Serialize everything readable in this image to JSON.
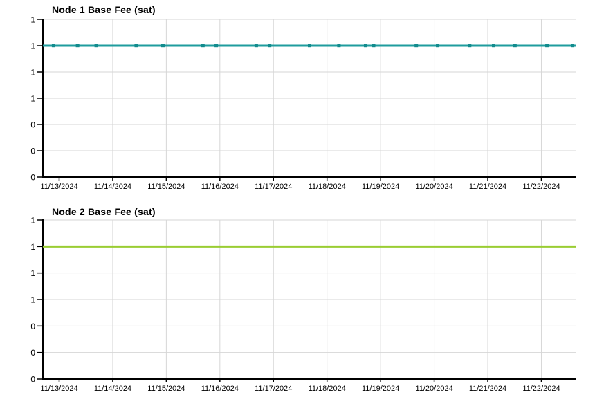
{
  "page": {
    "background_color": "#ffffff",
    "text_color": "#000000",
    "grid_color": "#d6d6d6",
    "axis_color": "#000000"
  },
  "chart_data": [
    {
      "type": "line",
      "title": "Node 1 Base Fee (sat)",
      "xlabel": "",
      "ylabel": "",
      "x": [
        "11/13/2024",
        "11/14/2024",
        "11/15/2024",
        "11/16/2024",
        "11/17/2024",
        "11/18/2024",
        "11/19/2024",
        "11/20/2024",
        "11/21/2024",
        "11/22/2024"
      ],
      "series": [
        {
          "name": "Node 1 Base Fee",
          "color": "#1f9c9e",
          "marker_color": "#128b8d",
          "values": [
            1,
            1,
            1,
            1,
            1,
            1,
            1,
            1,
            1,
            1
          ]
        }
      ],
      "ylim": [
        0,
        1.2
      ],
      "y_ticks": [
        1.2,
        1.0,
        0.8,
        0.6,
        0.4,
        0.2,
        0
      ],
      "y_tick_labels": [
        "1",
        "1",
        "1",
        "1",
        "0",
        "0",
        "0"
      ],
      "grid": true,
      "legend": "none",
      "markers": true
    },
    {
      "type": "line",
      "title": "Node 2 Base Fee (sat)",
      "xlabel": "",
      "ylabel": "",
      "x": [
        "11/13/2024",
        "11/14/2024",
        "11/15/2024",
        "11/16/2024",
        "11/17/2024",
        "11/18/2024",
        "11/19/2024",
        "11/20/2024",
        "11/21/2024",
        "11/22/2024"
      ],
      "series": [
        {
          "name": "Node 2 Base Fee",
          "color": "#9acd32",
          "marker_color": "#8abc28",
          "values": [
            1,
            1,
            1,
            1,
            1,
            1,
            1,
            1,
            1,
            1
          ]
        }
      ],
      "ylim": [
        0,
        1.2
      ],
      "y_ticks": [
        1.2,
        1.0,
        0.8,
        0.6,
        0.4,
        0.2,
        0
      ],
      "y_tick_labels": [
        "1",
        "1",
        "1",
        "1",
        "0",
        "0",
        "0"
      ],
      "grid": true,
      "legend": "none",
      "markers": false
    }
  ]
}
